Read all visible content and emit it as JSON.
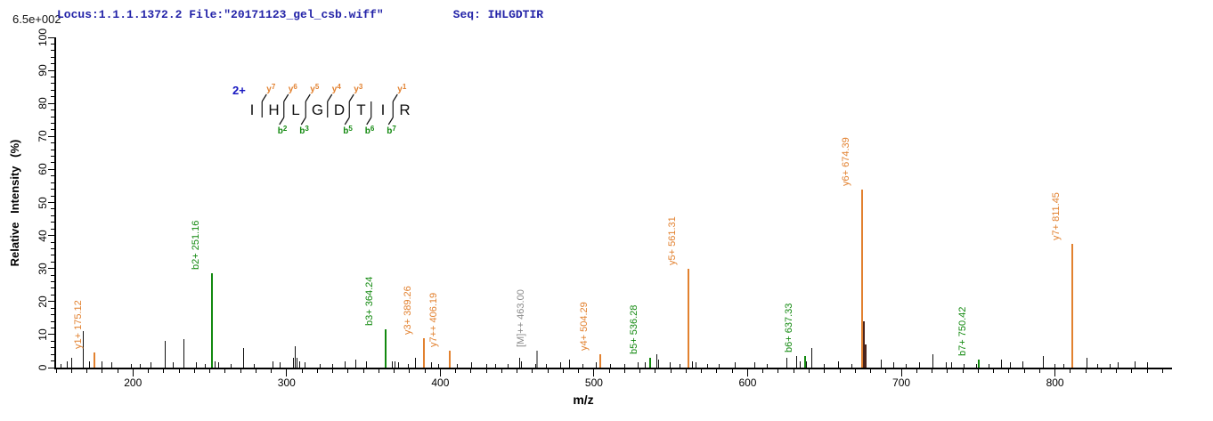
{
  "header": {
    "intensity_scale": "6.5e+002",
    "locus_file": "Locus:1.1.1.1372.2 File:\"20171123_gel_csb.wiff\"",
    "seq": "Seq: IHLGDTIR"
  },
  "colors": {
    "title_blue": "#2323a8",
    "charge_blue": "#1515c0",
    "y_ion_orange": "#e2812f",
    "b_ion_green": "#12890f",
    "precursor_gray": "#8a8a8a",
    "isotope_maroon": "#4a241c",
    "peak_black": "#111111",
    "axis_black": "#000000"
  },
  "peptide": {
    "charge": "2+",
    "residues": [
      "I",
      "H",
      "L",
      "G",
      "D",
      "T",
      "I",
      "R"
    ],
    "cleavages": [
      {
        "gap": 0,
        "y": "7"
      },
      {
        "gap": 1,
        "y": "6",
        "b": "2"
      },
      {
        "gap": 2,
        "y": "5",
        "b": "3"
      },
      {
        "gap": 3,
        "y": "4"
      },
      {
        "gap": 4,
        "y": "3",
        "b": "5"
      },
      {
        "gap": 5,
        "b": "6"
      },
      {
        "gap": 6,
        "y": "1",
        "b": "7"
      }
    ]
  },
  "chart_data": {
    "type": "bar",
    "title": "Locus:1.1.1.1372.2 File:\"20171123_gel_csb.wiff\" Seq: IHLGDTIR",
    "xlabel": "m/z",
    "ylabel": "Relative Intensity (%)",
    "xlim": [
      150,
      875
    ],
    "ylim": [
      0,
      100
    ],
    "x_major_ticks": [
      200,
      300,
      400,
      500,
      600,
      700,
      800
    ],
    "x_minor_step": 10,
    "y_major_ticks": [
      0,
      10,
      20,
      30,
      40,
      50,
      60,
      70,
      80,
      90,
      100
    ],
    "y_minor_step": 2,
    "grid": false,
    "legend": false,
    "annotated_peaks": [
      {
        "label": "y1+ 175.12",
        "mz": 175.12,
        "intensity": 4.5,
        "type": "y"
      },
      {
        "label": "b2+ 251.16",
        "mz": 251.16,
        "intensity": 28.5,
        "type": "b"
      },
      {
        "label": "b3+ 364.24",
        "mz": 364.24,
        "intensity": 11.5,
        "type": "b"
      },
      {
        "label": "y3+ 389.26",
        "mz": 389.26,
        "intensity": 9,
        "type": "y"
      },
      {
        "label": "y7++ 406.19",
        "mz": 406.19,
        "intensity": 5,
        "type": "y"
      },
      {
        "label": "[M]++ 463.00",
        "mz": 463.0,
        "intensity": 5,
        "type": "M"
      },
      {
        "label": "y4+ 504.29",
        "mz": 504.29,
        "intensity": 4,
        "type": "y"
      },
      {
        "label": "b5+ 536.28",
        "mz": 536.28,
        "intensity": 3,
        "type": "b"
      },
      {
        "label": "y5+ 561.31",
        "mz": 561.31,
        "intensity": 30,
        "type": "y"
      },
      {
        "label": "b6+ 637.33",
        "mz": 637.33,
        "intensity": 3.5,
        "type": "b"
      },
      {
        "label": "y6+ 674.39",
        "mz": 674.39,
        "intensity": 54,
        "type": "y"
      },
      {
        "label": "b7+ 750.42",
        "mz": 750.42,
        "intensity": 2.5,
        "type": "b"
      },
      {
        "label": "y7+ 811.45",
        "mz": 811.45,
        "intensity": 37.5,
        "type": "y"
      }
    ],
    "isotope_peaks": [
      [
        675.5,
        14
      ],
      [
        676.6,
        7
      ]
    ],
    "unassigned_peaks": [
      [
        153,
        1
      ],
      [
        157,
        2
      ],
      [
        160,
        3
      ],
      [
        167.5,
        11
      ],
      [
        171.5,
        2
      ],
      [
        180,
        2
      ],
      [
        186,
        1.5
      ],
      [
        199,
        1
      ],
      [
        205,
        1
      ],
      [
        212,
        1.5
      ],
      [
        220.8,
        8
      ],
      [
        226,
        1.5
      ],
      [
        233,
        8.5
      ],
      [
        241,
        1.5
      ],
      [
        247,
        1
      ],
      [
        253.5,
        2
      ],
      [
        256,
        1.5
      ],
      [
        264,
        1
      ],
      [
        271.8,
        6
      ],
      [
        279,
        1
      ],
      [
        291,
        2
      ],
      [
        296,
        1.5
      ],
      [
        304.3,
        3
      ],
      [
        305.8,
        6.5
      ],
      [
        307,
        3
      ],
      [
        308.5,
        2
      ],
      [
        312,
        1.5
      ],
      [
        322,
        1
      ],
      [
        330,
        1
      ],
      [
        338,
        2
      ],
      [
        345,
        2.5
      ],
      [
        352,
        2
      ],
      [
        368.5,
        2
      ],
      [
        370.8,
        2
      ],
      [
        373,
        1.5
      ],
      [
        379,
        1
      ],
      [
        384,
        3
      ],
      [
        394,
        1.5
      ],
      [
        399,
        1
      ],
      [
        411,
        1
      ],
      [
        420.5,
        1.5
      ],
      [
        430,
        1
      ],
      [
        436,
        1
      ],
      [
        444,
        1
      ],
      [
        451.5,
        3
      ],
      [
        453,
        2
      ],
      [
        462,
        1
      ],
      [
        469,
        1
      ],
      [
        478.5,
        1.5
      ],
      [
        484,
        2.5
      ],
      [
        493,
        1
      ],
      [
        501.7,
        1.5
      ],
      [
        511,
        1
      ],
      [
        520,
        1
      ],
      [
        528.7,
        1.5
      ],
      [
        533.5,
        1.5
      ],
      [
        540.8,
        4
      ],
      [
        542.2,
        2.5
      ],
      [
        549.7,
        1.5
      ],
      [
        556,
        1
      ],
      [
        564,
        2
      ],
      [
        566.5,
        1.5
      ],
      [
        574,
        1
      ],
      [
        581.6,
        1
      ],
      [
        592,
        1.5
      ],
      [
        604.7,
        1.5
      ],
      [
        613,
        1
      ],
      [
        625.6,
        3
      ],
      [
        632,
        3.5
      ],
      [
        634.3,
        2
      ],
      [
        638.5,
        2
      ],
      [
        642,
        6
      ],
      [
        650,
        1
      ],
      [
        659.4,
        2
      ],
      [
        668,
        1
      ],
      [
        687,
        2.5
      ],
      [
        695,
        1.5
      ],
      [
        703,
        1
      ],
      [
        711.9,
        1.5
      ],
      [
        720.6,
        4
      ],
      [
        729,
        1.5
      ],
      [
        732.5,
        1.5
      ],
      [
        741,
        1
      ],
      [
        749,
        1
      ],
      [
        757,
        1
      ],
      [
        765,
        2.5
      ],
      [
        771,
        1.5
      ],
      [
        779,
        2
      ],
      [
        792.5,
        3.5
      ],
      [
        800,
        1
      ],
      [
        806,
        1
      ],
      [
        821,
        3
      ],
      [
        828,
        1
      ],
      [
        836,
        1
      ],
      [
        841,
        1.5
      ],
      [
        852,
        2
      ],
      [
        860,
        1.5
      ]
    ]
  }
}
